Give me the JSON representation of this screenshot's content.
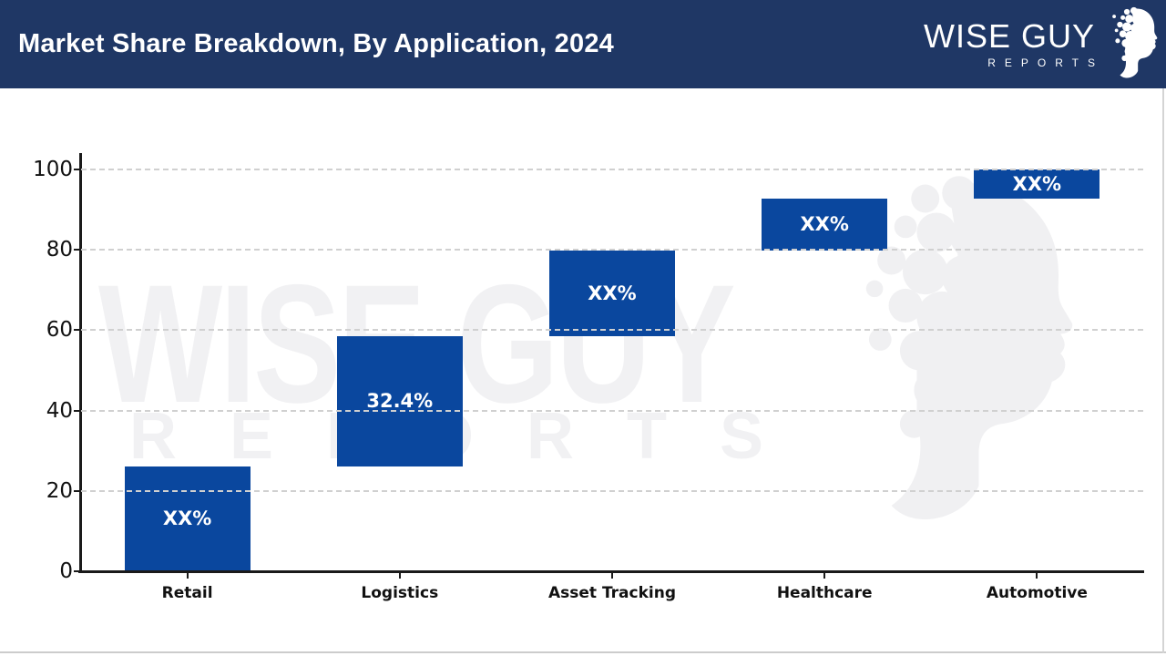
{
  "header": {
    "title": "Market Share Breakdown, By Application, 2024",
    "bg_color": "#1f3765",
    "logo": {
      "line1": "WISE GUY",
      "line2": "REPORTS"
    }
  },
  "watermark": {
    "line1": "WISE GUY",
    "line2": "REPORTS"
  },
  "chart_data": {
    "type": "bar",
    "subtype": "waterfall",
    "title": "Market Share Breakdown, By Application, 2024",
    "categories": [
      "Retail",
      "Logistics",
      "Asset Tracking",
      "Healthcare",
      "Automotive"
    ],
    "series": [
      {
        "name": "Market Share %",
        "values": [
          26.1,
          32.4,
          21.4,
          12.9,
          7.2
        ]
      }
    ],
    "bar_labels": [
      "XX%",
      "32.4%",
      "XX%",
      "XX%",
      "XX%"
    ],
    "xlabel": "",
    "ylabel": "",
    "ylim": [
      0,
      100
    ],
    "yticks": [
      0,
      20,
      40,
      60,
      80,
      100
    ],
    "grid": "horizontal-dashed-over-bars",
    "legend": "none",
    "bar_color": "#0a479e",
    "grid_color": "#d0d0d0",
    "axis_color": "#1a1a1a"
  }
}
